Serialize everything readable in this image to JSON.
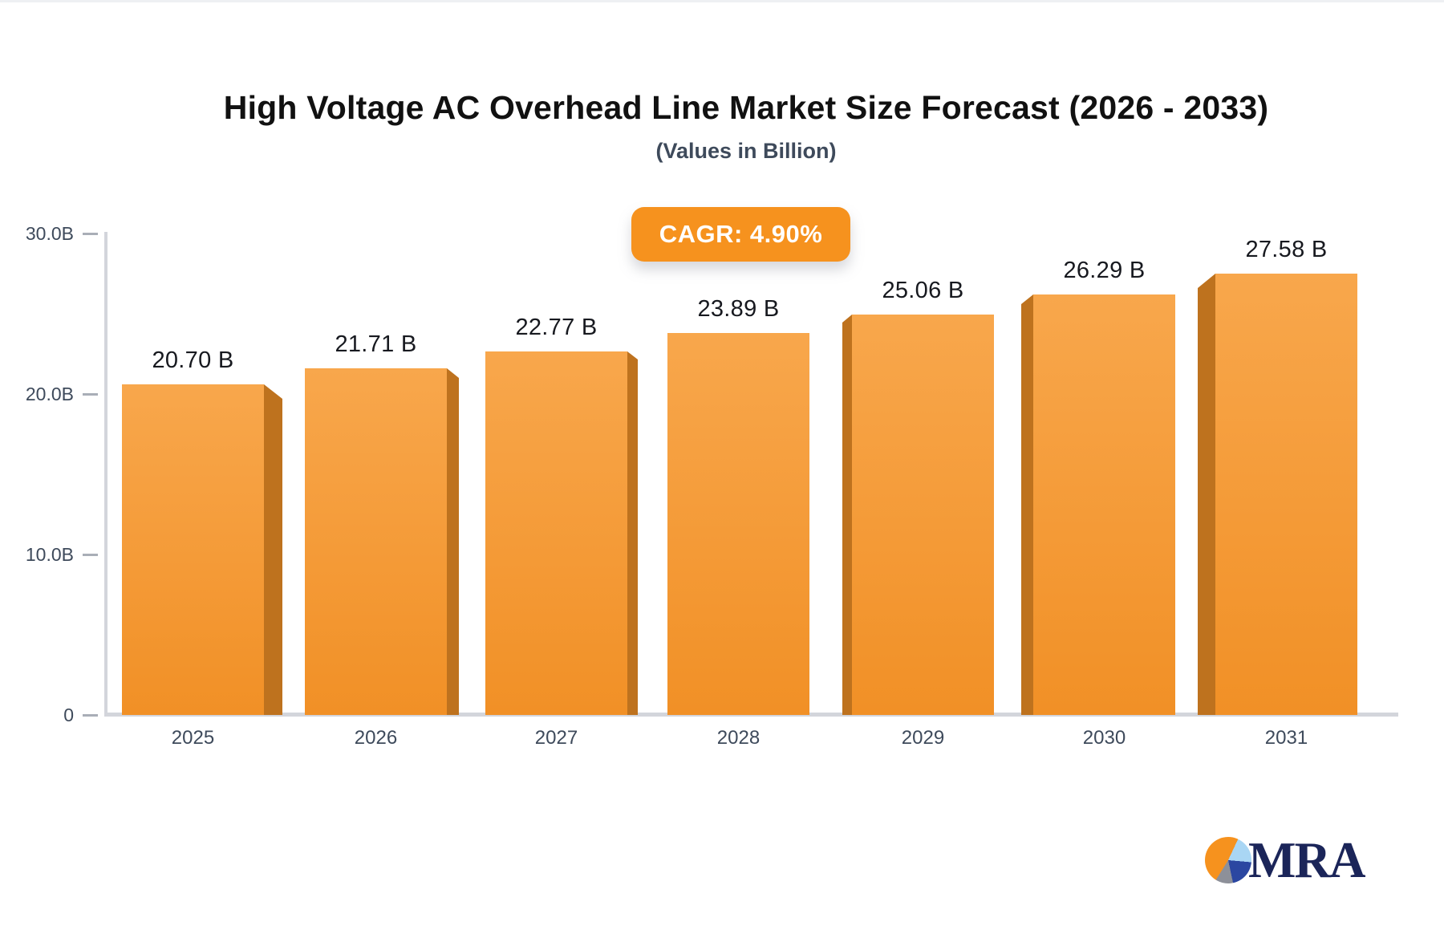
{
  "chart_data": {
    "type": "bar",
    "title": "High Voltage AC Overhead Line Market Size Forecast (2026 - 2033)",
    "subtitle": "(Values in Billion)",
    "cagr_label": "CAGR: 4.90%",
    "categories": [
      "2025",
      "2026",
      "2027",
      "2028",
      "2029",
      "2030",
      "2031"
    ],
    "values": [
      20.7,
      21.71,
      22.77,
      23.89,
      25.06,
      26.29,
      27.58
    ],
    "value_labels": [
      "20.70 B",
      "21.71 B",
      "22.77 B",
      "23.89 B",
      "25.06 B",
      "26.29 B",
      "27.58 B"
    ],
    "unit": "Billion USD",
    "ylim": [
      0,
      30
    ],
    "y_ticks": [
      {
        "label": "30.0B",
        "value": 30
      },
      {
        "label": "20.0B",
        "value": 20
      },
      {
        "label": "10.0B",
        "value": 10
      },
      {
        "label": "0",
        "value": 0
      }
    ],
    "grid": false,
    "legend": null,
    "bar_style": "3d-extruded, perspective toward center bar"
  },
  "branding": {
    "logo_text": "MRA",
    "logo_icon": "pie-chart-icon"
  },
  "colors": {
    "title": "#111111",
    "tick_label": "#3E4A5B",
    "value_label": "#17191F",
    "axis_line": "#D3D5DB",
    "badge_bg": "#F6921E",
    "bar_top": "#F8A74C",
    "bar_bottom": "#F19026",
    "bar_side": "#BE721E",
    "logo_navy": "#1B2559",
    "pie_orange": "#F6921E",
    "pie_light_blue": "#A9D6F4",
    "pie_dark_blue": "#2B47A1",
    "pie_gray": "#8D9099"
  }
}
